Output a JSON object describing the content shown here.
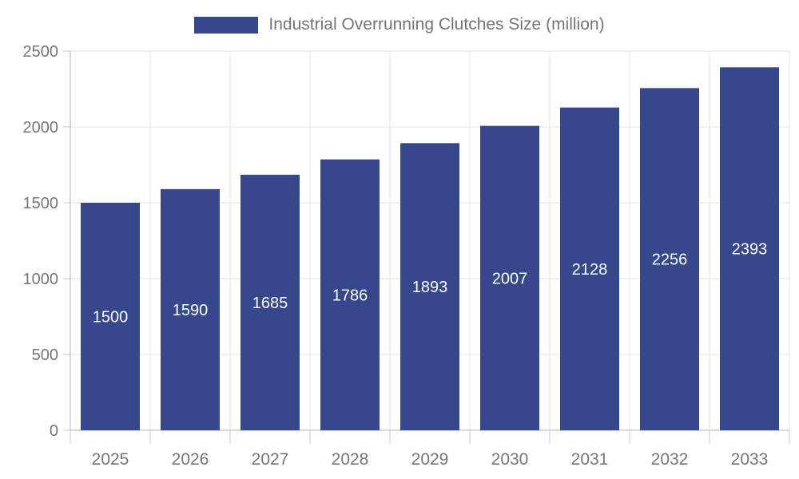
{
  "chart_data": {
    "type": "bar",
    "title": "Industrial Overrunning Clutches Size (million)",
    "legend_position": "top",
    "categories": [
      "2025",
      "2026",
      "2027",
      "2028",
      "2029",
      "2030",
      "2031",
      "2032",
      "2033"
    ],
    "series": [
      {
        "name": "Industrial Overrunning Clutches Size (million)",
        "values": [
          1500,
          1590,
          1685,
          1786,
          1893,
          2007,
          2128,
          2256,
          2393
        ]
      }
    ],
    "ylim": [
      0,
      2500
    ],
    "y_ticks": [
      0,
      500,
      1000,
      1500,
      2000,
      2500
    ],
    "grid": true,
    "value_labels": "inside-center",
    "colors": {
      "bar": "#36478C",
      "value_label": "#FFFFFF",
      "axis_label": "#757575",
      "grid_line": "#E3E3E3",
      "axis_line": "#B0B0B0",
      "tick_line": "#C9C9C9"
    }
  }
}
